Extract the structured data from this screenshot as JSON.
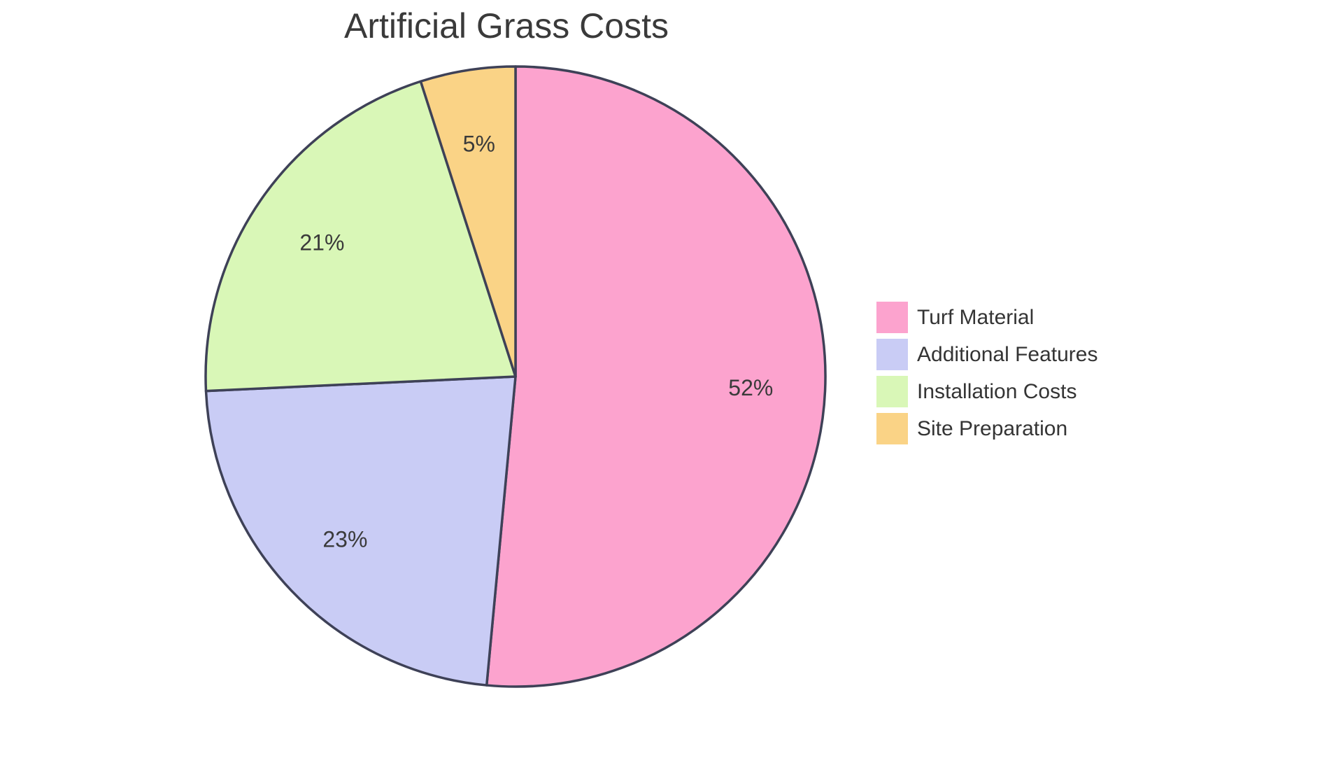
{
  "title": "Artificial Grass Costs",
  "chart_data": {
    "type": "pie",
    "title": "Artificial Grass Costs",
    "categories": [
      "Turf Material",
      "Additional Features",
      "Installation Costs",
      "Site Preparation"
    ],
    "values": [
      52,
      23,
      21,
      5
    ],
    "slice_labels": [
      "52%",
      "23%",
      "21%",
      "5%"
    ],
    "colors": [
      "#FCA3CE",
      "#C9CCF5",
      "#D9F7B7",
      "#FAD386"
    ],
    "stroke_color": "#3E4157",
    "label_color": "#3A3A3A",
    "start_angle_deg": 0,
    "direction": "clockwise",
    "legend_position": "right",
    "legend": [
      {
        "label": "Turf Material",
        "color": "#FCA3CE"
      },
      {
        "label": "Additional Features",
        "color": "#C9CCF5"
      },
      {
        "label": "Installation Costs",
        "color": "#D9F7B7"
      },
      {
        "label": "Site Preparation",
        "color": "#FAD386"
      }
    ]
  }
}
